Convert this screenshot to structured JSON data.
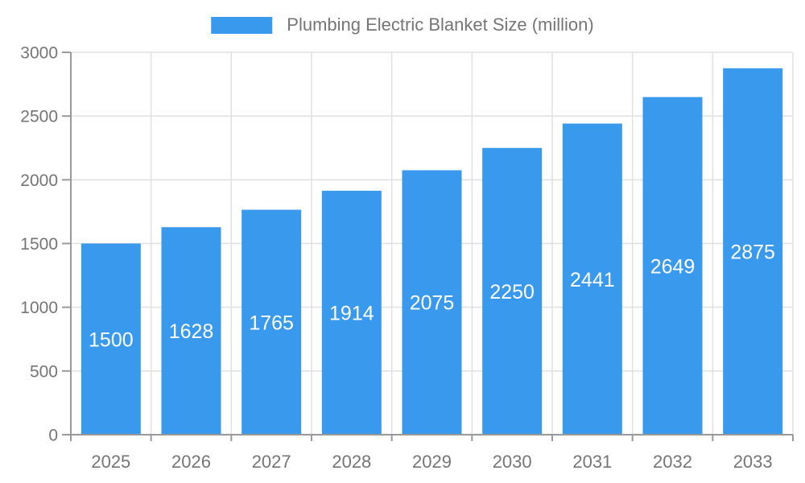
{
  "chart_data": {
    "type": "bar",
    "title": "Plumbing Electric Blanket Size (million)",
    "categories": [
      "2025",
      "2026",
      "2027",
      "2028",
      "2029",
      "2030",
      "2031",
      "2032",
      "2033"
    ],
    "values": [
      1500,
      1628,
      1765,
      1914,
      2075,
      2250,
      2441,
      2649,
      2875
    ],
    "xlabel": "",
    "ylabel": "",
    "ylim": [
      0,
      3000
    ],
    "ytick_step": 500,
    "ytick_labels": [
      "0",
      "500",
      "1000",
      "1500",
      "2000",
      "2500",
      "3000"
    ],
    "grid": true,
    "legend_position": "top",
    "bar_value_labels_shown": true,
    "colors": {
      "bar": "#3999EC",
      "bar_value_label": "#FFFFFF",
      "axis_text": "#757575",
      "grid_line": "#E0E0E0",
      "axis_line": "#999999",
      "background": "#FFFFFF"
    }
  }
}
